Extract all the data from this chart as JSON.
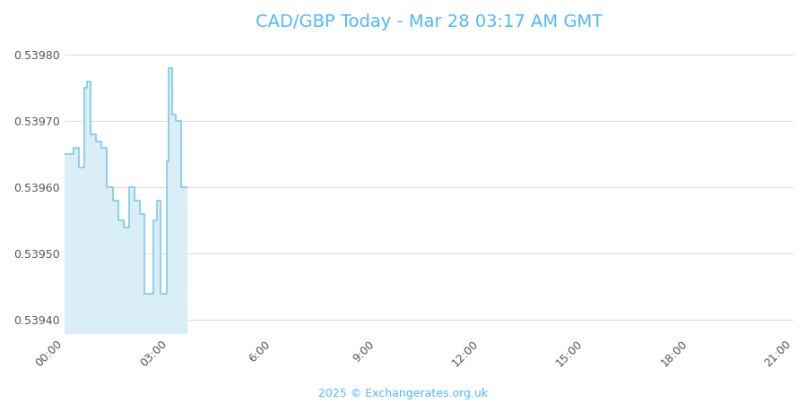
{
  "title": "CAD/GBP Today - Mar 28 03:17 AM GMT",
  "title_color": "#4db8ff",
  "footer": "2025 © Exchangerates.org.uk",
  "footer_color": "#4db8ff",
  "ylim": [
    0.53938,
    0.53982
  ],
  "yticks": [
    0.5394,
    0.5395,
    0.5396,
    0.5397,
    0.5398
  ],
  "xtick_labels": [
    "00:00",
    "03:00",
    "6:00",
    "9:00",
    "12:00",
    "15:00",
    "18:00",
    "21:00"
  ],
  "xtick_positions": [
    0,
    3,
    6,
    9,
    12,
    15,
    18,
    21
  ],
  "xlim": [
    0,
    21
  ],
  "line_color": "#7fcce8",
  "fill_color": "#daeef8",
  "background_color": "#ffffff",
  "grid_color": "#dddddd",
  "x": [
    0.0,
    0.25,
    0.4,
    0.55,
    0.65,
    0.75,
    0.9,
    1.05,
    1.2,
    1.4,
    1.55,
    1.7,
    1.85,
    2.0,
    2.15,
    2.3,
    2.45,
    2.55,
    2.65,
    2.75,
    2.85,
    2.95,
    3.0,
    3.1,
    3.2,
    3.35,
    3.5
  ],
  "y": [
    0.53965,
    0.53966,
    0.53963,
    0.53975,
    0.53976,
    0.53968,
    0.53967,
    0.53966,
    0.5396,
    0.53958,
    0.53955,
    0.53954,
    0.5396,
    0.53958,
    0.53956,
    0.53944,
    0.53944,
    0.53955,
    0.53958,
    0.53944,
    0.53944,
    0.53964,
    0.53978,
    0.53971,
    0.5397,
    0.5396,
    0.5396
  ]
}
